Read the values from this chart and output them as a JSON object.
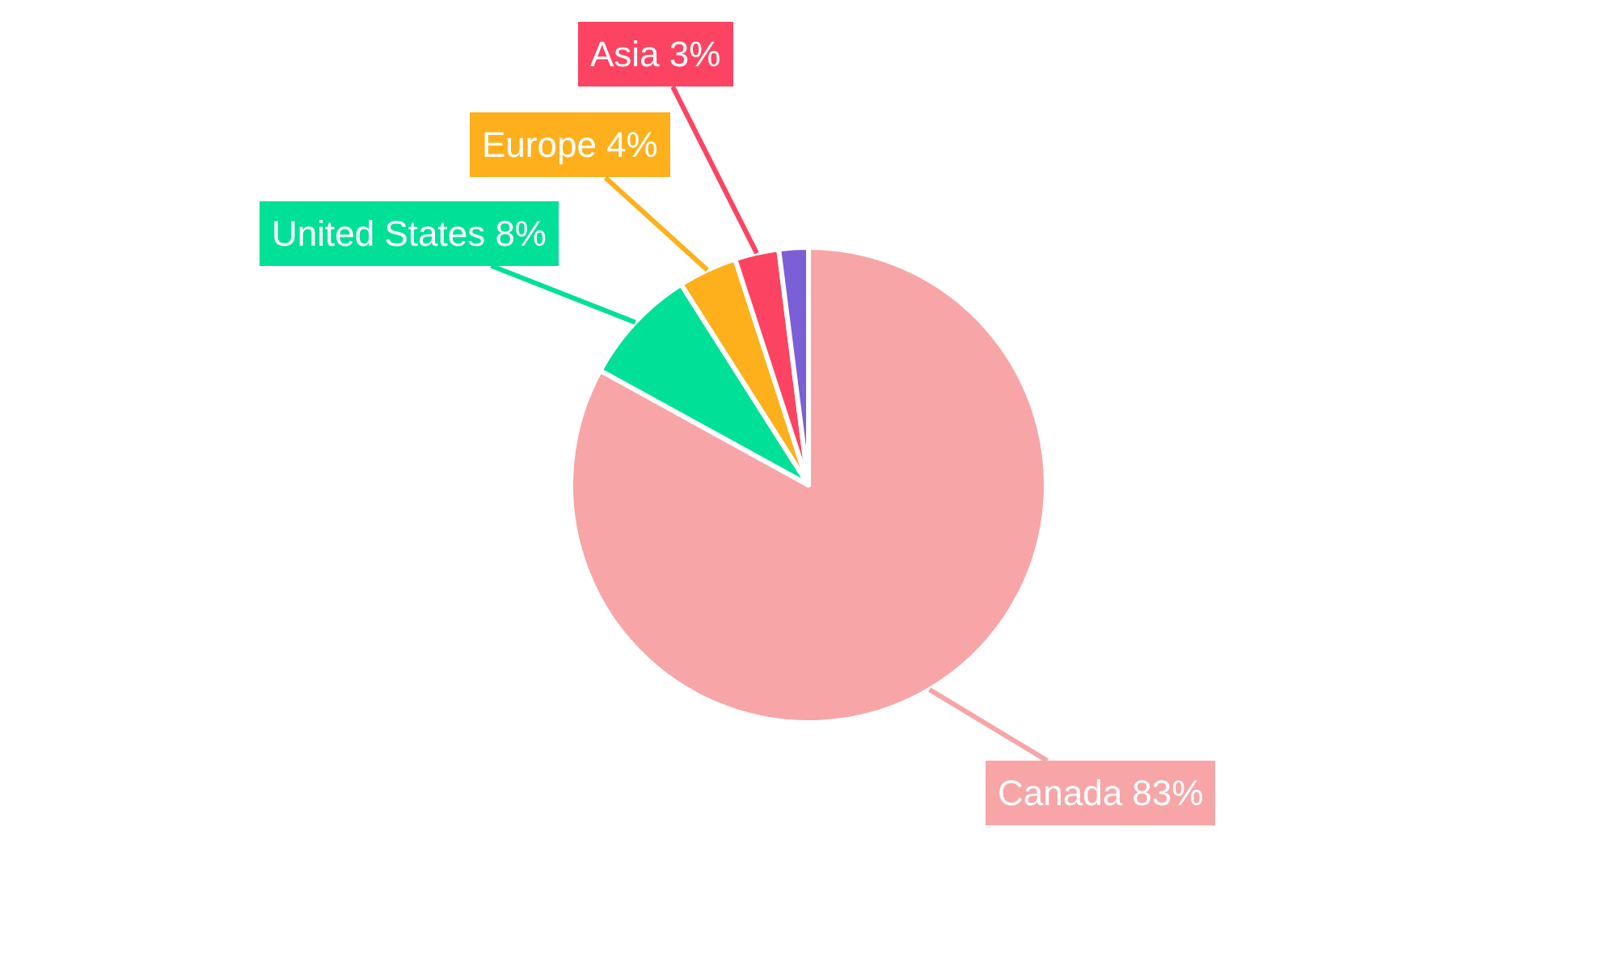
{
  "chart_data": {
    "type": "pie",
    "categories": [
      "Canada",
      "United States",
      "Europe",
      "Asia",
      null
    ],
    "values": [
      83,
      8,
      4,
      3,
      2
    ],
    "value_labels": [
      "83%",
      "8%",
      "4%",
      "3%",
      null
    ],
    "colors": [
      "#f8a5a7",
      "#00e096",
      "#fdb01c",
      "#fd4362",
      "#7b5fd6"
    ],
    "legend": false
  }
}
